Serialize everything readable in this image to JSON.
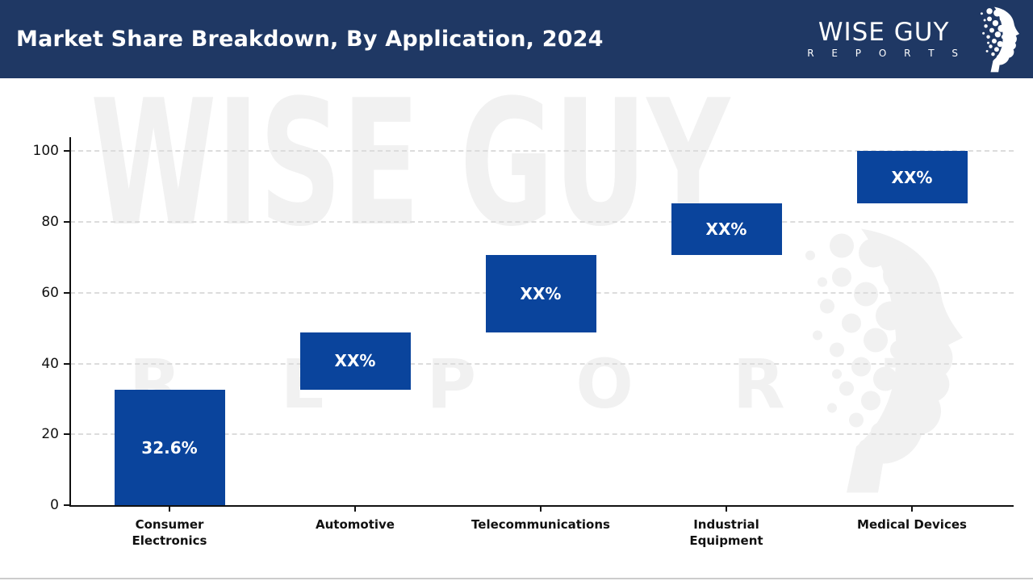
{
  "header": {
    "logo": {
      "line1": "WISE GUY",
      "line2": "R E P O R T S"
    }
  },
  "watermark": {
    "line1": "WISE GUY",
    "line2": "R E P O R T S"
  },
  "colors": {
    "header_bg": "#1f3864",
    "bar": "#0a449c",
    "grid": "#dcdcdc",
    "axis": "#111111",
    "bar_label": "#ffffff",
    "watermark": "#f1f1f1"
  },
  "chart_data": {
    "type": "bar",
    "subtype": "waterfall",
    "title": "Market Share Breakdown, By Application, 2024",
    "categories": [
      "Consumer\nElectronics",
      "Automotive",
      "Telecommunications",
      "Industrial\nEquipment",
      "Medical Devices"
    ],
    "segments": [
      {
        "category": "Consumer Electronics",
        "start": 0,
        "end": 32.6,
        "label": "32.6%"
      },
      {
        "category": "Automotive",
        "start": 32.6,
        "end": 48.8,
        "label": "XX%"
      },
      {
        "category": "Telecommunications",
        "start": 48.8,
        "end": 70.7,
        "label": "XX%"
      },
      {
        "category": "Industrial Equipment",
        "start": 70.7,
        "end": 85.3,
        "label": "XX%"
      },
      {
        "category": "Medical Devices",
        "start": 85.3,
        "end": 100,
        "label": "XX%"
      }
    ],
    "yticks": [
      0,
      20,
      40,
      60,
      80,
      100
    ],
    "ylim": [
      0,
      104
    ],
    "xlabel": "",
    "ylabel": "",
    "grid": "horizontal-dashed",
    "legend": "none",
    "bar_value_note": "values are cumulative market-share percentages; non-first bars float (waterfall style)"
  }
}
